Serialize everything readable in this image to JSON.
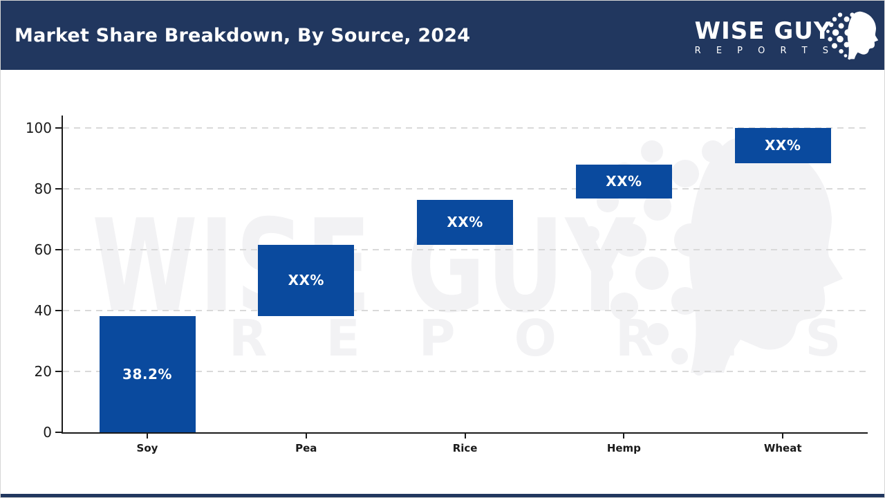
{
  "header": {
    "title": "Market Share Breakdown, By Source, 2024",
    "logo": {
      "line1": "WISE GUY",
      "line2": "R E P O R T S"
    }
  },
  "watermark": {
    "line1": "WISE GUY",
    "line2": "R E P O R T S"
  },
  "colors": {
    "header_bg": "#21375f",
    "bar": "#0a4a9e",
    "bar_label": "#ffffff",
    "gridline": "#d9d9d9",
    "axis_text": "#1a1a1a",
    "watermark": "#f2f2f4"
  },
  "chart_data": {
    "type": "bar",
    "subtype": "waterfall",
    "title": "Market Share Breakdown, By Source, 2024",
    "categories": [
      "Soy",
      "Pea",
      "Rice",
      "Hemp",
      "Wheat"
    ],
    "segments": [
      {
        "category": "Soy",
        "start": 0,
        "end": 38.2,
        "label": "38.2%"
      },
      {
        "category": "Pea",
        "start": 38.2,
        "end": 61.6,
        "label": "XX%"
      },
      {
        "category": "Rice",
        "start": 61.6,
        "end": 76.4,
        "label": "XX%"
      },
      {
        "category": "Hemp",
        "start": 76.9,
        "end": 88.0,
        "label": "XX%"
      },
      {
        "category": "Wheat",
        "start": 88.4,
        "end": 100.0,
        "label": "XX%"
      }
    ],
    "yticks": [
      0,
      20,
      40,
      60,
      80,
      100
    ],
    "ylim": [
      0,
      104.5
    ],
    "xlabel": "",
    "ylabel": "",
    "grid": "horizontal-dashed",
    "legend": "none",
    "bar_label_position": "center"
  }
}
